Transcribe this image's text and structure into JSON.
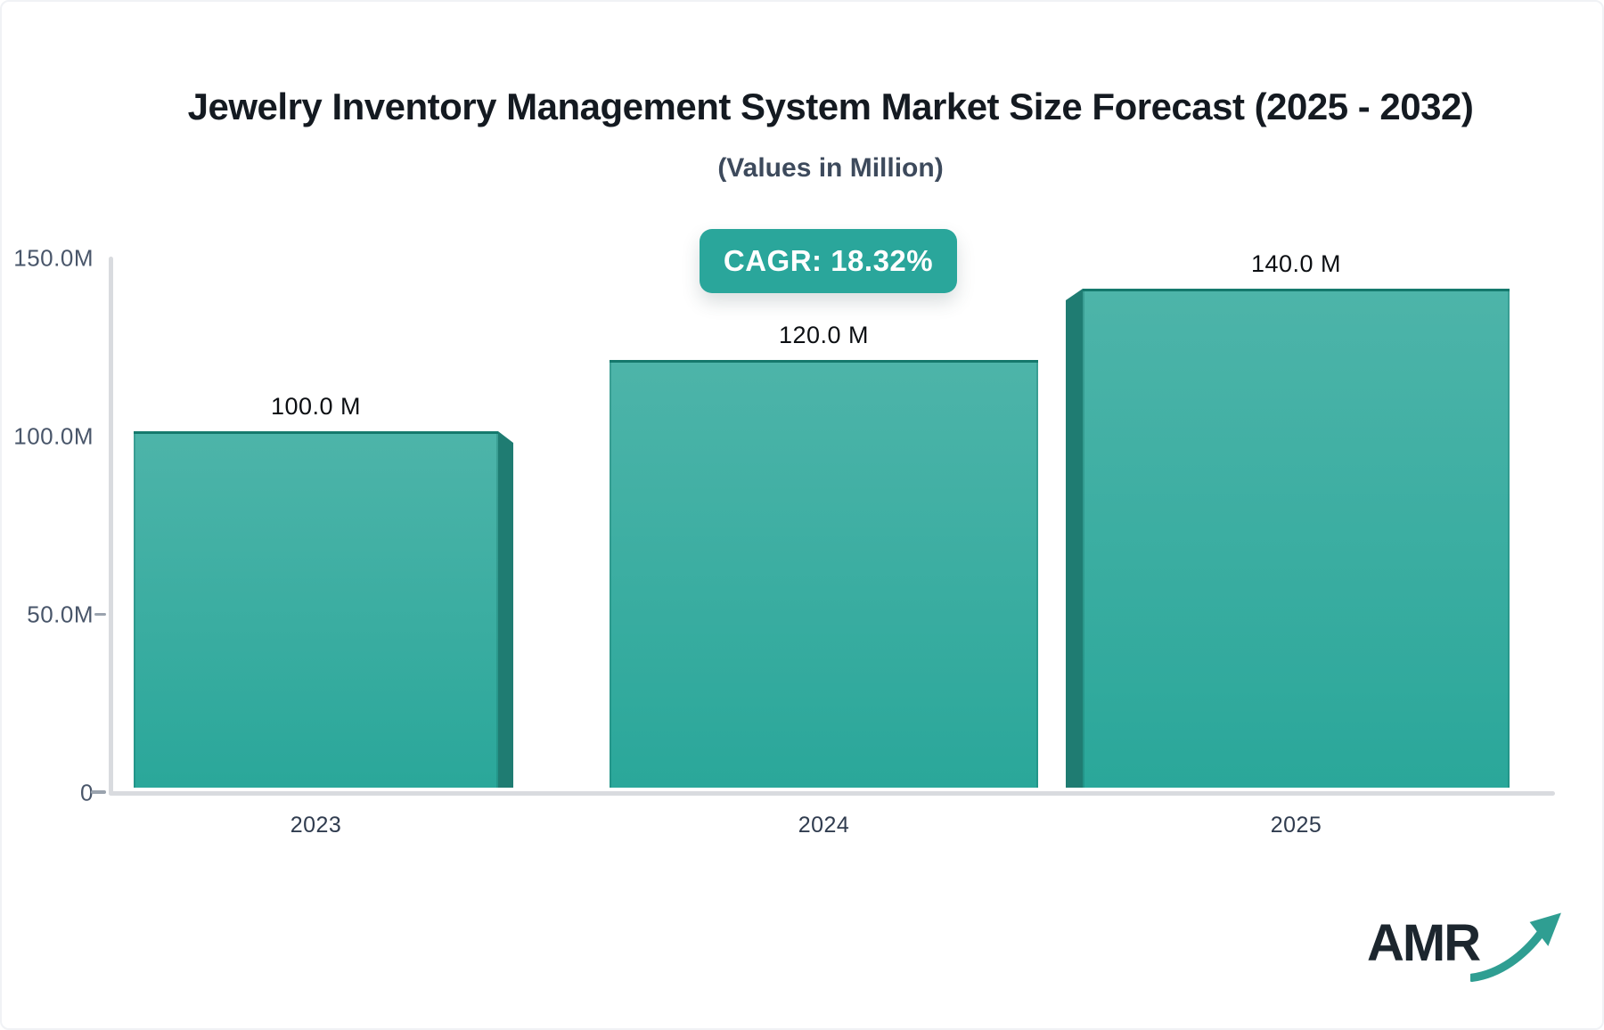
{
  "chart_data": {
    "type": "bar",
    "title": "Jewelry Inventory Management System Market Size Forecast (2025 - 2032)",
    "subtitle": "(Values in Million)",
    "categories": [
      "2023",
      "2024",
      "2025"
    ],
    "values": [
      100.0,
      120.0,
      140.0
    ],
    "value_labels": [
      "100.0 M",
      "120.0 M",
      "140.0 M"
    ],
    "unit": "Million",
    "ylim": [
      0,
      150
    ],
    "yticks": [
      {
        "value": 150,
        "label": "150.0M"
      },
      {
        "value": 100,
        "label": "100.0M"
      },
      {
        "value": 50,
        "label": "50.0M"
      },
      {
        "value": 0,
        "label": "0"
      }
    ],
    "grid": false,
    "legend": false,
    "cagr_badge": {
      "label": "CAGR: 18.32%"
    },
    "colors": {
      "bar_top": "#4db4a9",
      "bar_bottom": "#2aa79a",
      "bar_top_border": "#15796d",
      "bar_side": "#1f7c72",
      "badge_bg": "#2aa69b",
      "axis": "#d9dbdf",
      "axis_label": "#49566a",
      "year_label": "#303c4f"
    }
  },
  "logo": {
    "text": "AMR",
    "icon": "growth-arrow-icon",
    "text_color": "#1c262e",
    "arrow_color": "#2f9e92"
  }
}
